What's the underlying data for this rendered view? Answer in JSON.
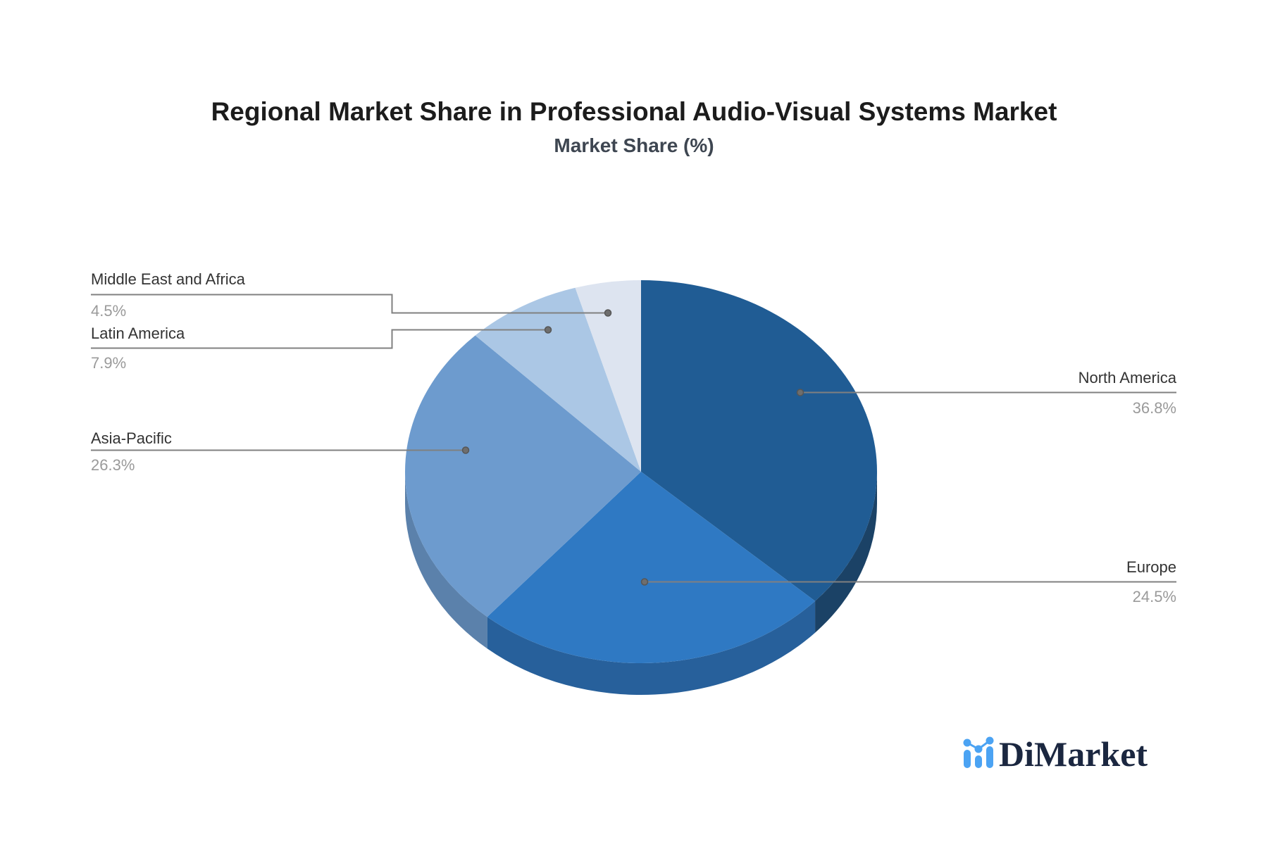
{
  "title": "Regional Market Share in Professional Audio-Visual Systems Market",
  "subtitle": "Market Share (%)",
  "chart_data": {
    "type": "pie",
    "title": "Regional Market Share in Professional Audio-Visual Systems Market",
    "subtitle": "Market Share (%)",
    "unit": "%",
    "start_angle": "12 o'clock, clockwise",
    "style": "3d-pie",
    "legend": "none, callout labels with leader lines",
    "slices": [
      {
        "label": "North America",
        "value": 36.8,
        "display": "36.8%",
        "color": "#205c94",
        "side_color": "#1b4266"
      },
      {
        "label": "Europe",
        "value": 24.5,
        "display": "24.5%",
        "color": "#2f79c3",
        "side_color": "#27609b"
      },
      {
        "label": "Asia-Pacific",
        "value": 26.3,
        "display": "26.3%",
        "color": "#6d9bce",
        "side_color": "#5b81ab"
      },
      {
        "label": "Latin America",
        "value": 7.9,
        "display": "7.9%",
        "color": "#abc7e5",
        "side_color": "#8fa9c6"
      },
      {
        "label": "Middle East and Africa",
        "value": 4.5,
        "display": "4.5%",
        "color": "#dde4f0",
        "side_color": "#b8c4d6"
      }
    ]
  },
  "colors": {
    "background": "#ffffff",
    "title_text": "#1c1c1c",
    "subtitle_text": "#3e4651",
    "label_text": "#333333",
    "pct_text": "#9a9a9a",
    "leader_line": "#808080",
    "leader_dot": "#6e6e6e",
    "leader_dot_ring": "#565656"
  },
  "logo": {
    "text": "DiMarket",
    "icon": "bar-chart-trend-logo-icon",
    "icon_color": "#4ba3f3",
    "text_color": "#1b2740"
  }
}
